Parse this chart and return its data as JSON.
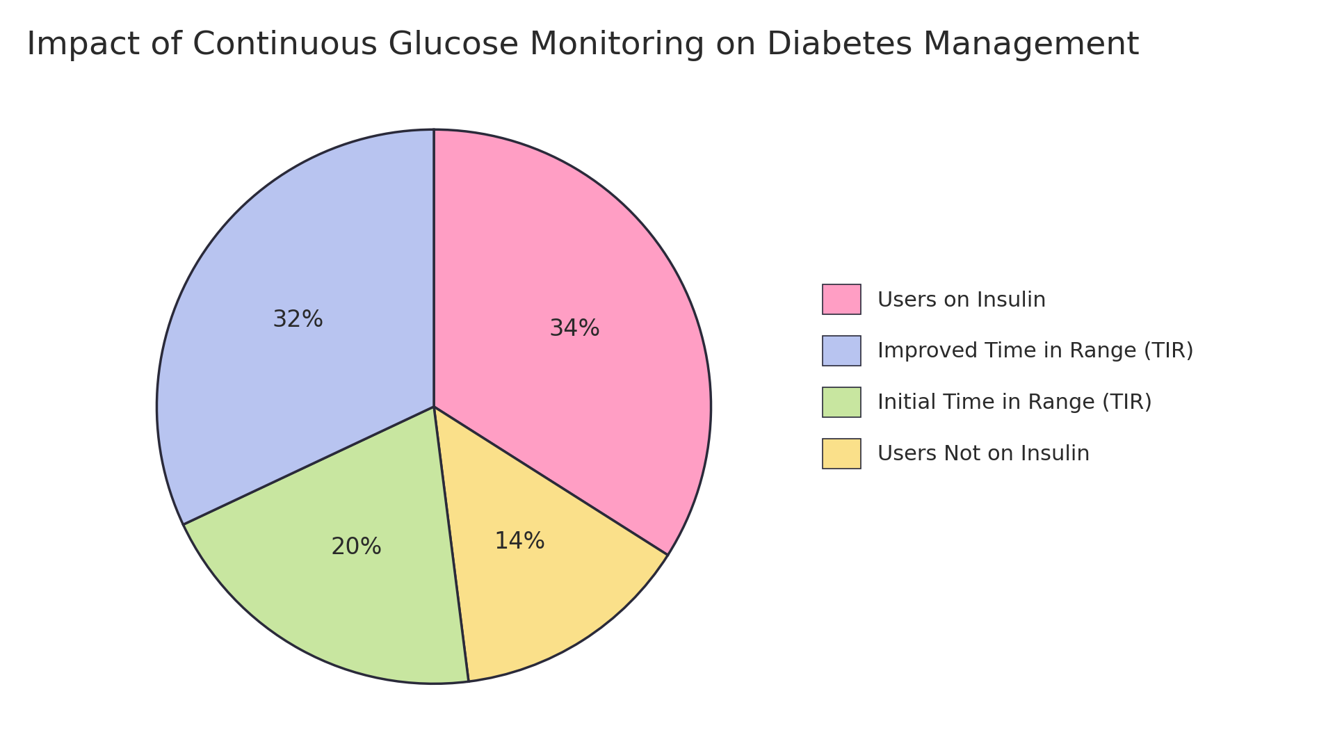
{
  "title": "Impact of Continuous Glucose Monitoring on Diabetes Management",
  "slices": [
    {
      "label": "Users on Insulin",
      "value": 34,
      "color": "#FF9EC4"
    },
    {
      "label": "Users Not on Insulin",
      "value": 14,
      "color": "#FAE08A"
    },
    {
      "label": "Initial Time in Range (TIR)",
      "value": 20,
      "color": "#C8E6A0"
    },
    {
      "label": "Improved Time in Range (TIR)",
      "value": 32,
      "color": "#B8C4F0"
    }
  ],
  "background_color": "#FFFFFF",
  "edge_color": "#2A2A3A",
  "edge_linewidth": 2.5,
  "text_color": "#2A2A2A",
  "title_fontsize": 34,
  "label_fontsize": 24,
  "legend_fontsize": 22,
  "startangle": 90
}
